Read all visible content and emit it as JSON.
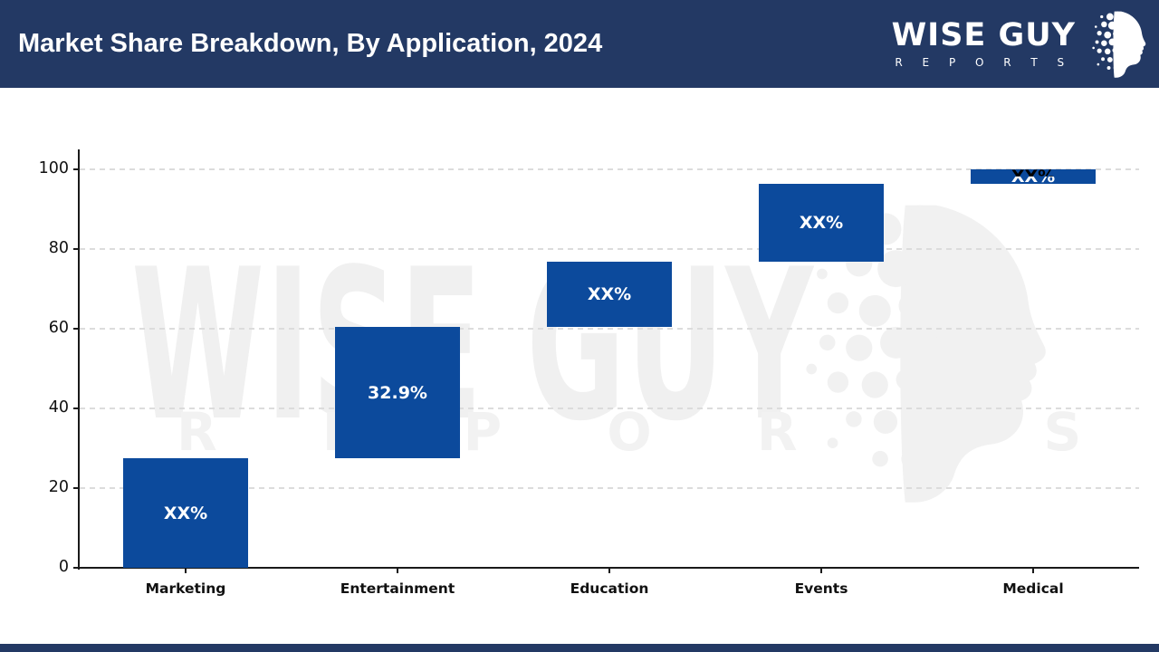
{
  "header": {
    "title": "Market Share Breakdown, By Application, 2024",
    "logo": {
      "wordmark": "WISE GUY",
      "subtext": "R E P O R T S"
    }
  },
  "watermark": {
    "wordmark": "WISE GUY",
    "subtext": "R E P O R T S"
  },
  "colors": {
    "header_bg": "#233964",
    "footer_bg": "#233964",
    "bar": "#0c4a9c",
    "grid": "#dcdcdc",
    "axis": "#1a1a1a",
    "bar_label": "#ffffff",
    "text": "#111111",
    "watermark": "#f0f0f0"
  },
  "chart_data": {
    "type": "bar",
    "subtype": "waterfall",
    "title": "Market Share Breakdown, By Application, 2024",
    "categories": [
      "Marketing",
      "Entertainment",
      "Education",
      "Events",
      "Medical"
    ],
    "series": [
      {
        "name": "Market Share",
        "segments": [
          {
            "category": "Marketing",
            "start": 0,
            "end": 27.5,
            "label": "XX%"
          },
          {
            "category": "Entertainment",
            "start": 27.5,
            "end": 60.4,
            "label": "32.9%"
          },
          {
            "category": "Education",
            "start": 60.4,
            "end": 76.9,
            "label": "XX%"
          },
          {
            "category": "Events",
            "start": 76.9,
            "end": 96.4,
            "label": "XX%"
          },
          {
            "category": "Medical",
            "start": 96.4,
            "end": 100,
            "label": "XX%"
          }
        ]
      }
    ],
    "yticks": [
      0,
      20,
      40,
      60,
      80,
      100
    ],
    "ylim": [
      0,
      105
    ],
    "xlabel": "",
    "ylabel": "",
    "grid": "horizontal-dashed",
    "legend": "none"
  }
}
